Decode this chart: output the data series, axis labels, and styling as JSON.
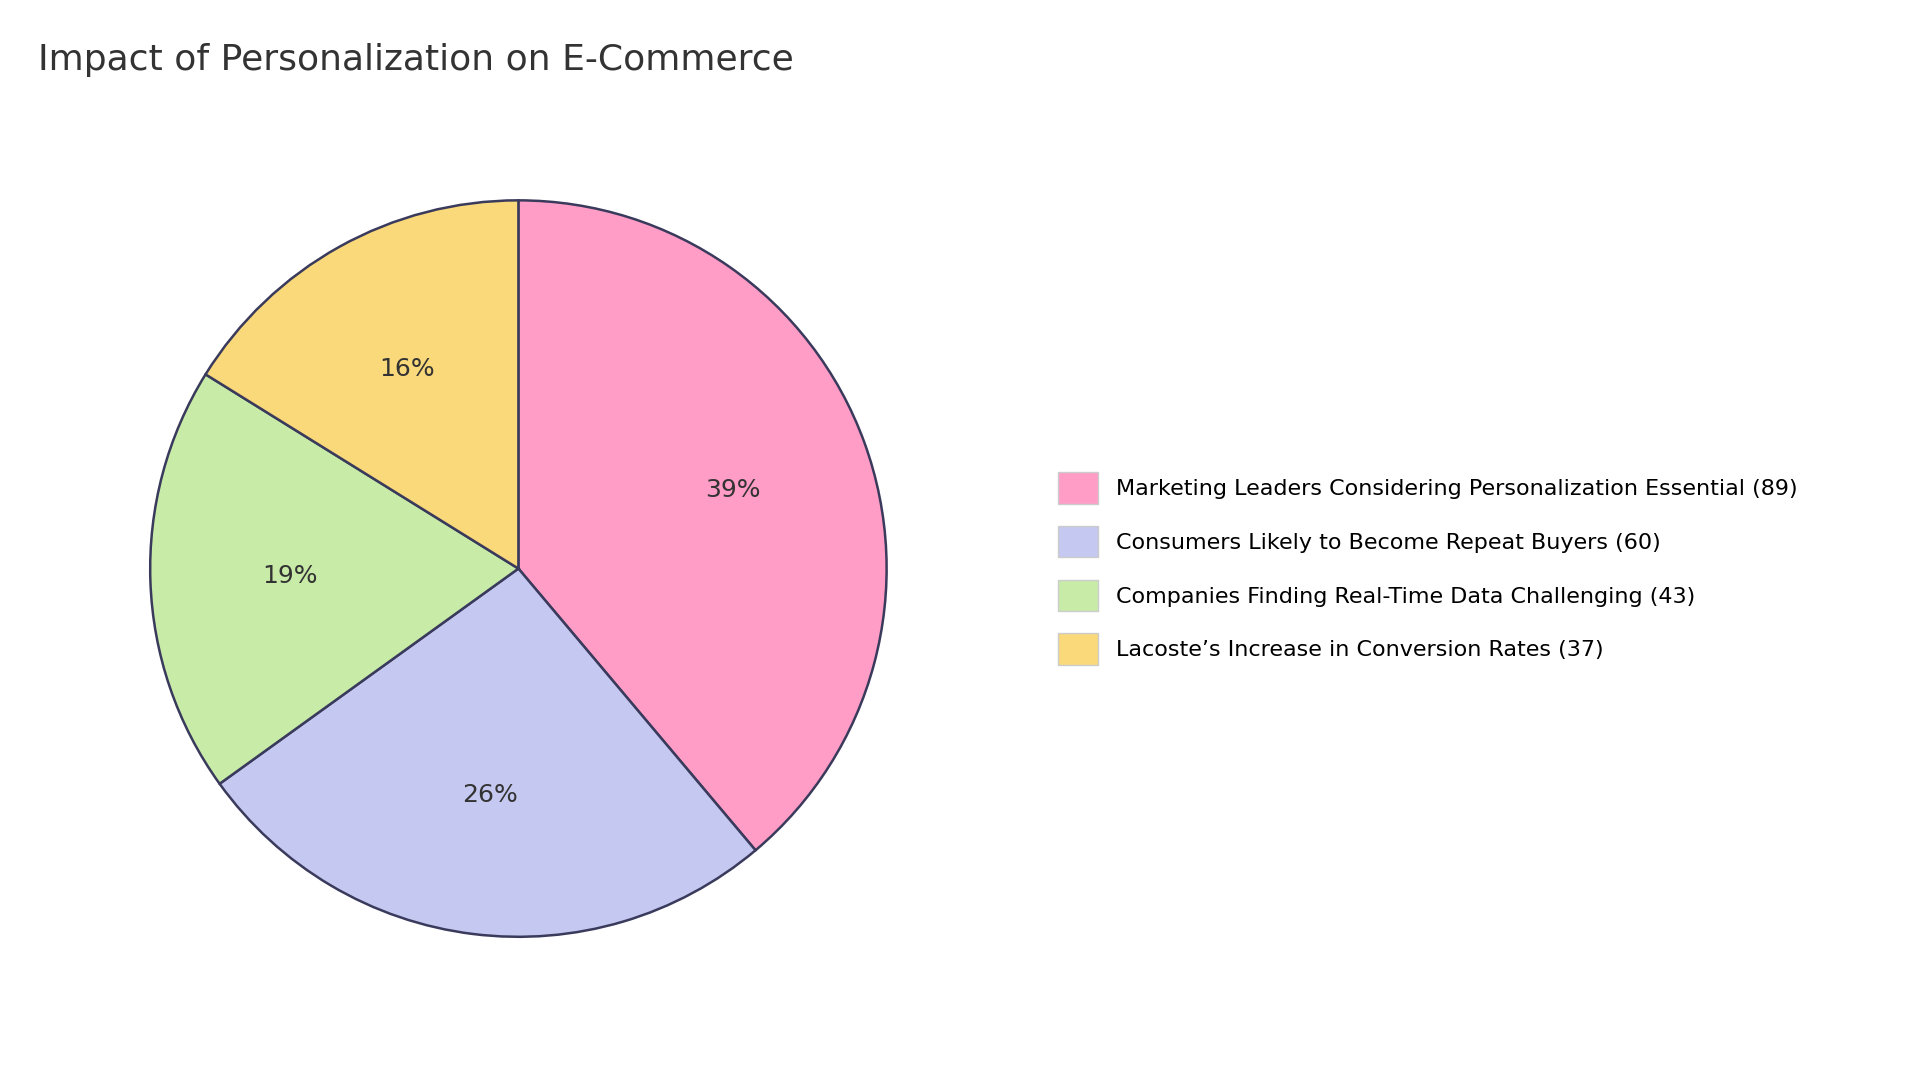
{
  "title": "Impact of Personalization on E-Commerce",
  "slices": [
    89,
    60,
    43,
    37
  ],
  "labels": [
    "Marketing Leaders Considering Personalization Essential (89)",
    "Consumers Likely to Become Repeat Buyers (60)",
    "Companies Finding Real-Time Data Challenging (43)",
    "Lacoste’s Increase in Conversion Rates (37)"
  ],
  "colors": [
    "#FF9DC6",
    "#C5C8F0",
    "#C8ECA8",
    "#F9D97A"
  ],
  "edge_color": "#3a3a5c",
  "background_color": "#ffffff",
  "title_fontsize": 26,
  "autopct_fontsize": 18,
  "legend_fontsize": 16,
  "startangle": 90
}
